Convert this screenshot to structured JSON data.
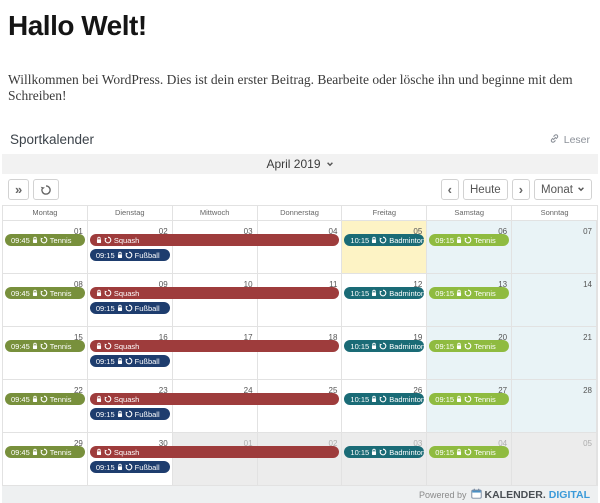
{
  "page": {
    "title": "Hallo Welt!",
    "intro": "Willkommen bei WordPress. Dies ist dein erster Beitrag. Bearbeite oder lösche ihn und beginne mit dem Schreiben!"
  },
  "widget": {
    "title": "Sportkalender",
    "reader_label": "Leser",
    "month_label": "April 2019",
    "toolbar": {
      "expand_icon": "»",
      "prev_icon": "‹",
      "today_label": "Heute",
      "next_icon": "›",
      "view_label": "Monat"
    },
    "day_headers": [
      "Montag",
      "Dienstag",
      "Mittwoch",
      "Donnerstag",
      "Freitag",
      "Samstag",
      "Sonntag"
    ],
    "footer": {
      "powered_by": "Powered by",
      "brand_main": "KALENDER.",
      "brand_accent": "DIGITAL"
    }
  },
  "colors": {
    "today_bg": "#fdf3c5",
    "weekend_bg": "#e9f3f6",
    "outside_bg": "#ececec",
    "tennis_monday": "#78903c",
    "squash": "#9e3c3c",
    "fussball": "#1e3d6e",
    "badminton": "#1a6b76",
    "tennis_saturday": "#8fbb40",
    "brand_accent": "#3b9ad9"
  },
  "calendar": {
    "weeks": [
      {
        "days": [
          {
            "num": "01"
          },
          {
            "num": "02"
          },
          {
            "num": "03"
          },
          {
            "num": "04"
          },
          {
            "num": "05",
            "today": true
          },
          {
            "num": "06",
            "weekend": true
          },
          {
            "num": "07",
            "weekend": true
          }
        ],
        "events": [
          {
            "col": 0,
            "span": 1,
            "line": 0,
            "time": "09:45",
            "label": "Tennis",
            "color": "#78903c"
          },
          {
            "col": 1,
            "span": 3,
            "line": 0,
            "time": "",
            "label": "Squash",
            "color": "#9e3c3c"
          },
          {
            "col": 1,
            "span": 1,
            "line": 1,
            "time": "09:15",
            "label": "Fußball",
            "color": "#1e3d6e"
          },
          {
            "col": 4,
            "span": 1,
            "line": 0,
            "time": "10:15",
            "label": "Badminton",
            "color": "#1a6b76"
          },
          {
            "col": 5,
            "span": 1,
            "line": 0,
            "time": "09:15",
            "label": "Tennis",
            "color": "#8fbb40"
          }
        ]
      },
      {
        "days": [
          {
            "num": "08"
          },
          {
            "num": "09"
          },
          {
            "num": "10"
          },
          {
            "num": "11"
          },
          {
            "num": "12"
          },
          {
            "num": "13",
            "weekend": true
          },
          {
            "num": "14",
            "weekend": true
          }
        ],
        "events": [
          {
            "col": 0,
            "span": 1,
            "line": 0,
            "time": "09:45",
            "label": "Tennis",
            "color": "#78903c"
          },
          {
            "col": 1,
            "span": 3,
            "line": 0,
            "time": "",
            "label": "Squash",
            "color": "#9e3c3c"
          },
          {
            "col": 1,
            "span": 1,
            "line": 1,
            "time": "09:15",
            "label": "Fußball",
            "color": "#1e3d6e"
          },
          {
            "col": 4,
            "span": 1,
            "line": 0,
            "time": "10:15",
            "label": "Badminton",
            "color": "#1a6b76"
          },
          {
            "col": 5,
            "span": 1,
            "line": 0,
            "time": "09:15",
            "label": "Tennis",
            "color": "#8fbb40"
          }
        ]
      },
      {
        "days": [
          {
            "num": "15"
          },
          {
            "num": "16"
          },
          {
            "num": "17"
          },
          {
            "num": "18"
          },
          {
            "num": "19"
          },
          {
            "num": "20",
            "weekend": true
          },
          {
            "num": "21",
            "weekend": true
          }
        ],
        "events": [
          {
            "col": 0,
            "span": 1,
            "line": 0,
            "time": "09:45",
            "label": "Tennis",
            "color": "#78903c"
          },
          {
            "col": 1,
            "span": 3,
            "line": 0,
            "time": "",
            "label": "Squash",
            "color": "#9e3c3c"
          },
          {
            "col": 1,
            "span": 1,
            "line": 1,
            "time": "09:15",
            "label": "Fußball",
            "color": "#1e3d6e"
          },
          {
            "col": 4,
            "span": 1,
            "line": 0,
            "time": "10:15",
            "label": "Badminton",
            "color": "#1a6b76"
          },
          {
            "col": 5,
            "span": 1,
            "line": 0,
            "time": "09:15",
            "label": "Tennis",
            "color": "#8fbb40"
          }
        ]
      },
      {
        "days": [
          {
            "num": "22"
          },
          {
            "num": "23"
          },
          {
            "num": "24"
          },
          {
            "num": "25"
          },
          {
            "num": "26"
          },
          {
            "num": "27",
            "weekend": true
          },
          {
            "num": "28",
            "weekend": true
          }
        ],
        "events": [
          {
            "col": 0,
            "span": 1,
            "line": 0,
            "time": "09:45",
            "label": "Tennis",
            "color": "#78903c"
          },
          {
            "col": 1,
            "span": 3,
            "line": 0,
            "time": "",
            "label": "Squash",
            "color": "#9e3c3c"
          },
          {
            "col": 1,
            "span": 1,
            "line": 1,
            "time": "09:15",
            "label": "Fußball",
            "color": "#1e3d6e"
          },
          {
            "col": 4,
            "span": 1,
            "line": 0,
            "time": "10:15",
            "label": "Badminton",
            "color": "#1a6b76"
          },
          {
            "col": 5,
            "span": 1,
            "line": 0,
            "time": "09:15",
            "label": "Tennis",
            "color": "#8fbb40"
          }
        ]
      },
      {
        "days": [
          {
            "num": "29"
          },
          {
            "num": "30"
          },
          {
            "num": "01",
            "outside": true
          },
          {
            "num": "02",
            "outside": true
          },
          {
            "num": "03",
            "outside": true
          },
          {
            "num": "04",
            "outside": true
          },
          {
            "num": "05",
            "outside": true
          }
        ],
        "events": [
          {
            "col": 0,
            "span": 1,
            "line": 0,
            "time": "09:45",
            "label": "Tennis",
            "color": "#78903c"
          },
          {
            "col": 1,
            "span": 3,
            "line": 0,
            "time": "",
            "label": "Squash",
            "color": "#9e3c3c"
          },
          {
            "col": 1,
            "span": 1,
            "line": 1,
            "time": "09:15",
            "label": "Fußball",
            "color": "#1e3d6e"
          },
          {
            "col": 4,
            "span": 1,
            "line": 0,
            "time": "10:15",
            "label": "Badminton",
            "color": "#1a6b76"
          },
          {
            "col": 5,
            "span": 1,
            "line": 0,
            "time": "09:15",
            "label": "Tennis",
            "color": "#8fbb40"
          }
        ]
      }
    ]
  }
}
